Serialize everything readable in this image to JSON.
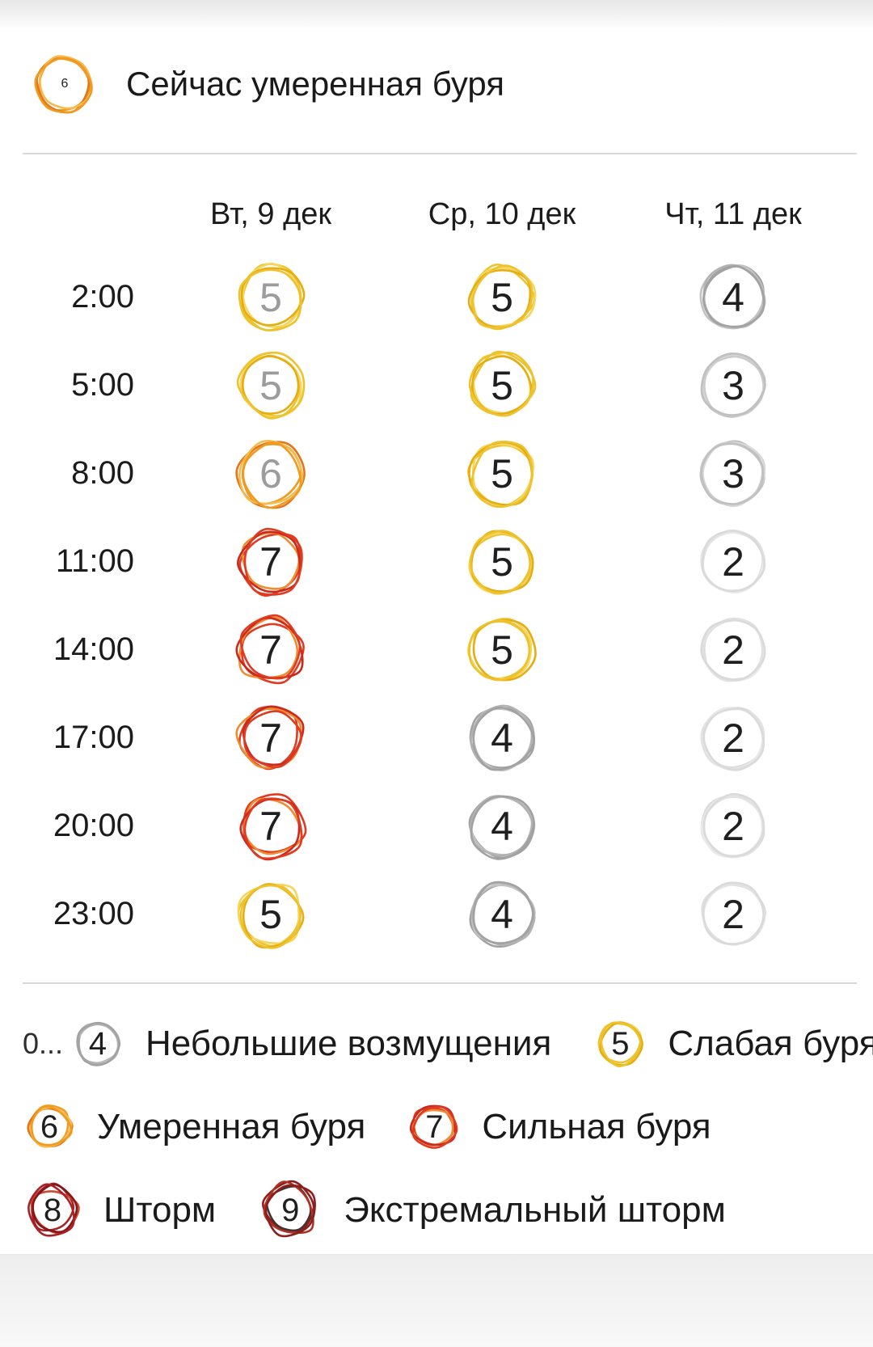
{
  "header": {
    "value": "6",
    "level": "6",
    "label": "Сейчас умеренная буря"
  },
  "forecast": {
    "columns": [
      "Вт, 9 дек",
      "Ср, 10 дек",
      "Чт, 11 дек"
    ],
    "rows": [
      {
        "time": "2:00",
        "cells": [
          {
            "value": "5",
            "level": "5",
            "past": true
          },
          {
            "value": "5",
            "level": "5",
            "past": false
          },
          {
            "value": "4",
            "level": "4",
            "past": false
          }
        ]
      },
      {
        "time": "5:00",
        "cells": [
          {
            "value": "5",
            "level": "5",
            "past": true
          },
          {
            "value": "5",
            "level": "5",
            "past": false
          },
          {
            "value": "3",
            "level": "3",
            "past": false
          }
        ]
      },
      {
        "time": "8:00",
        "cells": [
          {
            "value": "6",
            "level": "6",
            "past": true
          },
          {
            "value": "5",
            "level": "5",
            "past": false
          },
          {
            "value": "3",
            "level": "3",
            "past": false
          }
        ]
      },
      {
        "time": "11:00",
        "cells": [
          {
            "value": "7",
            "level": "7",
            "past": false
          },
          {
            "value": "5",
            "level": "5",
            "past": false
          },
          {
            "value": "2",
            "level": "2",
            "past": false
          }
        ]
      },
      {
        "time": "14:00",
        "cells": [
          {
            "value": "7",
            "level": "7",
            "past": false
          },
          {
            "value": "5",
            "level": "5",
            "past": false
          },
          {
            "value": "2",
            "level": "2",
            "past": false
          }
        ]
      },
      {
        "time": "17:00",
        "cells": [
          {
            "value": "7",
            "level": "7",
            "past": false
          },
          {
            "value": "4",
            "level": "4",
            "past": false
          },
          {
            "value": "2",
            "level": "2",
            "past": false
          }
        ]
      },
      {
        "time": "20:00",
        "cells": [
          {
            "value": "7",
            "level": "7",
            "past": false
          },
          {
            "value": "4",
            "level": "4",
            "past": false
          },
          {
            "value": "2",
            "level": "2",
            "past": false
          }
        ]
      },
      {
        "time": "23:00",
        "cells": [
          {
            "value": "5",
            "level": "5",
            "past": false
          },
          {
            "value": "4",
            "level": "4",
            "past": false
          },
          {
            "value": "2",
            "level": "2",
            "past": false
          }
        ]
      }
    ]
  },
  "legend": {
    "rows": [
      [
        {
          "prefix": "0...",
          "value": "4",
          "level": "4",
          "label": "Небольшие возмущения"
        },
        {
          "value": "5",
          "level": "5",
          "label": "Слабая буря"
        }
      ],
      [
        {
          "value": "6",
          "level": "6",
          "label": "Умеренная буря"
        },
        {
          "value": "7",
          "level": "7",
          "label": "Сильная буря"
        }
      ],
      [
        {
          "value": "8",
          "level": "8",
          "label": "Шторм"
        },
        {
          "value": "9",
          "level": "9",
          "label": "Экстремальный шторм"
        }
      ]
    ]
  },
  "palette": {
    "2": [
      "#dadada",
      "#eaeaea",
      "#e2e2e2"
    ],
    "3": [
      "#c0c0c0",
      "#d8d8d8",
      "#cccccc"
    ],
    "4": [
      "#a2a2a2",
      "#c2c2c2",
      "#b2b2b2"
    ],
    "5": [
      "#eec22c",
      "#f5d55c",
      "#e5ad10"
    ],
    "6": [
      "#f19a20",
      "#e2761c",
      "#f5bb4e"
    ],
    "7": [
      "#e03a20",
      "#ee8c2e",
      "#c92a1e"
    ],
    "8": [
      "#a92025",
      "#cc4a2f",
      "#851519"
    ],
    "9": [
      "#8c1f1d",
      "#443130",
      "#ae3226"
    ]
  },
  "text_colors": {
    "normal": "#1f1f1f",
    "past": "#9c9c9c"
  }
}
